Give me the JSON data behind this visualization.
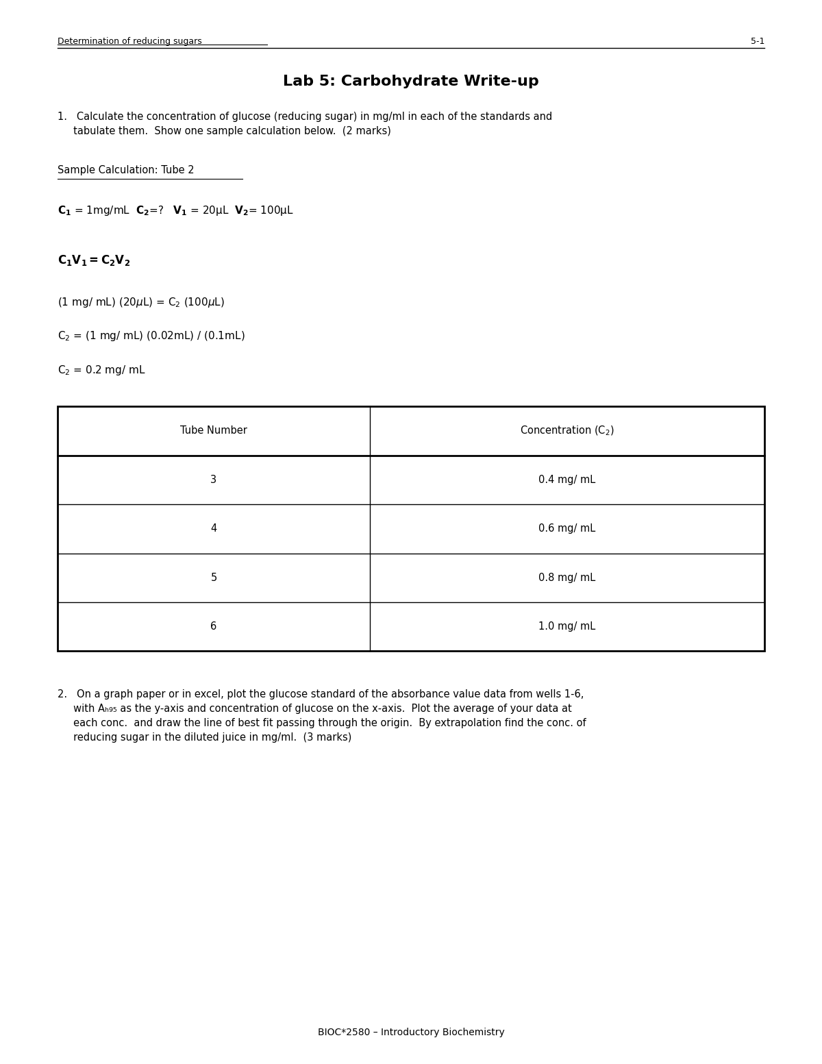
{
  "title": "Lab 5: Carbohydrate Write-up",
  "header_left": "Determination of reducing sugars",
  "header_right": "5-1",
  "footer": "BIOC*2580 – Introductory Biochemistry",
  "q1_text": "1.   Calculate the concentration of glucose (reducing sugar) in mg/ml in each of the standards and\n     tabulate them.  Show one sample calculation below.  (2 marks)",
  "sample_calc_label": "Sample Calculation: Tube 2",
  "table_headers": [
    "Tube Number",
    "Concentration (C₂)"
  ],
  "table_rows": [
    [
      "3",
      "0.4 mg/ mL"
    ],
    [
      "4",
      "0.6 mg/ mL"
    ],
    [
      "5",
      "0.8 mg/ mL"
    ],
    [
      "6",
      "1.0 mg/ mL"
    ]
  ],
  "q2_text": "2.   On a graph paper or in excel, plot the glucose standard of the absorbance value data from wells 1-6,\n     with Aₕ₉₅ as the y-axis and concentration of glucose on the x-axis.  Plot the average of your data at\n     each conc.  and draw the line of best fit passing through the origin.  By extrapolation find the conc. of\n     reducing sugar in the diluted juice in mg/ml.  (3 marks)",
  "bg_color": "#ffffff",
  "text_color": "#000000",
  "font_size_title": 16,
  "font_size_header": 9,
  "font_size_body": 10.5,
  "font_size_formula": 11,
  "font_size_footer": 10
}
